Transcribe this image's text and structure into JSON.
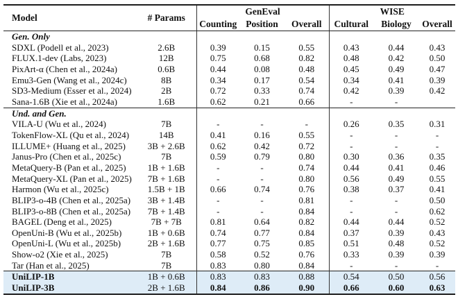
{
  "table": {
    "highlight_color": "#deecf7",
    "header": {
      "model": "Model",
      "params": "# Params",
      "groups": [
        {
          "label": "GenEval",
          "cols": [
            "Counting",
            "Position",
            "Overall"
          ]
        },
        {
          "label": "WISE",
          "cols": [
            "Cultural",
            "Biology",
            "Overall"
          ]
        }
      ]
    },
    "sections": [
      {
        "label": "Gen. Only",
        "highlight": false,
        "rows": [
          {
            "model": "SDXL (Podell et al., 2023)",
            "params": "2.6B",
            "values": [
              "0.39",
              "0.15",
              "0.55",
              "0.43",
              "0.44",
              "0.43"
            ]
          },
          {
            "model": "FLUX.1-dev (Labs, 2023)",
            "params": "12B",
            "values": [
              "0.75",
              "0.68",
              "0.82",
              "0.48",
              "0.42",
              "0.50"
            ]
          },
          {
            "model": "PixArt-α (Chen et al., 2024a)",
            "params": "0.6B",
            "values": [
              "0.44",
              "0.08",
              "0.48",
              "0.45",
              "0.49",
              "0.47"
            ]
          },
          {
            "model": "Emu3-Gen (Wang et al., 2024c)",
            "params": "8B",
            "values": [
              "0.34",
              "0.17",
              "0.54",
              "0.34",
              "0.41",
              "0.39"
            ]
          },
          {
            "model": "SD3-Medium (Esser et al., 2024)",
            "params": "2B",
            "values": [
              "0.72",
              "0.33",
              "0.74",
              "0.42",
              "0.39",
              "0.42"
            ]
          },
          {
            "model": "Sana-1.6B (Xie et al., 2024a)",
            "params": "1.6B",
            "values": [
              "0.62",
              "0.21",
              "0.66",
              "-",
              "-",
              ""
            ]
          }
        ]
      },
      {
        "label": "Und. and Gen.",
        "highlight": false,
        "rows": [
          {
            "model": "VILA-U (Wu et al., 2024)",
            "params": "7B",
            "values": [
              "-",
              "-",
              "-",
              "0.26",
              "0.35",
              "0.31"
            ]
          },
          {
            "model": "TokenFlow-XL (Qu et al., 2024)",
            "params": "14B",
            "values": [
              "0.41",
              "0.16",
              "0.55",
              "-",
              "-",
              "-"
            ]
          },
          {
            "model": "ILLUME+ (Huang et al., 2025)",
            "params": "3B + 2.6B",
            "values": [
              "0.62",
              "0.42",
              "0.72",
              "-",
              "-",
              "-"
            ]
          },
          {
            "model": "Janus-Pro (Chen et al., 2025c)",
            "params": "7B",
            "values": [
              "0.59",
              "0.79",
              "0.80",
              "0.30",
              "0.36",
              "0.35"
            ]
          },
          {
            "model": "MetaQuery-B (Pan et al., 2025)",
            "params": "1B + 1.6B",
            "values": [
              "-",
              "-",
              "0.74",
              "0.44",
              "0.41",
              "0.46"
            ]
          },
          {
            "model": "MetaQuery-XL (Pan et al., 2025)",
            "params": "7B + 1.6B",
            "values": [
              "-",
              "-",
              "0.80",
              "0.56",
              "0.49",
              "0.55"
            ]
          },
          {
            "model": "Harmon (Wu et al., 2025c)",
            "params": "1.5B + 1B",
            "values": [
              "0.66",
              "0.74",
              "0.76",
              "0.38",
              "0.37",
              "0.41"
            ]
          },
          {
            "model": "BLIP3-o-4B (Chen et al., 2025a)",
            "params": "3B + 1.4B",
            "values": [
              "-",
              "-",
              "0.81",
              "-",
              "-",
              "0.50"
            ]
          },
          {
            "model": "BLIP3-o-8B (Chen et al., 2025a)",
            "params": "7B + 1.4B",
            "values": [
              "-",
              "-",
              "0.84",
              "-",
              "-",
              "0.62"
            ]
          },
          {
            "model": "BAGEL (Deng et al., 2025)",
            "params": "7B + 7B",
            "values": [
              "0.81",
              "0.64",
              "0.82",
              "0.44",
              "0.44",
              "0.52"
            ]
          },
          {
            "model": "OpenUni-B (Wu et al., 2025b)",
            "params": "1B + 0.6B",
            "values": [
              "0.74",
              "0.77",
              "0.84",
              "0.37",
              "0.39",
              "0.43"
            ]
          },
          {
            "model": "OpenUni-L (Wu et al., 2025b)",
            "params": "2B + 1.6B",
            "values": [
              "0.77",
              "0.75",
              "0.85",
              "0.51",
              "0.48",
              "0.52"
            ]
          },
          {
            "model": "Show-o2 (Xie et al., 2025)",
            "params": "7B",
            "values": [
              "0.58",
              "0.52",
              "0.76",
              "0.33",
              "0.39",
              "0.39"
            ]
          },
          {
            "model": "Tar (Han et al., 2025)",
            "params": "7B",
            "values": [
              "0.83",
              "0.80",
              "0.84",
              "-",
              "-",
              "-"
            ]
          }
        ]
      },
      {
        "label": null,
        "highlight": true,
        "rows": [
          {
            "model": "UniLIP-1B",
            "params": "1B + 0.6B",
            "bold_model": true,
            "values": [
              "0.83",
              "0.83",
              "0.88",
              "0.54",
              "0.50",
              "0.56"
            ]
          },
          {
            "model": "UniLIP-3B",
            "params": "2B + 1.6B",
            "bold_model": true,
            "bold_values": true,
            "values": [
              "0.84",
              "0.86",
              "0.90",
              "0.66",
              "0.60",
              "0.63"
            ]
          }
        ]
      }
    ]
  }
}
